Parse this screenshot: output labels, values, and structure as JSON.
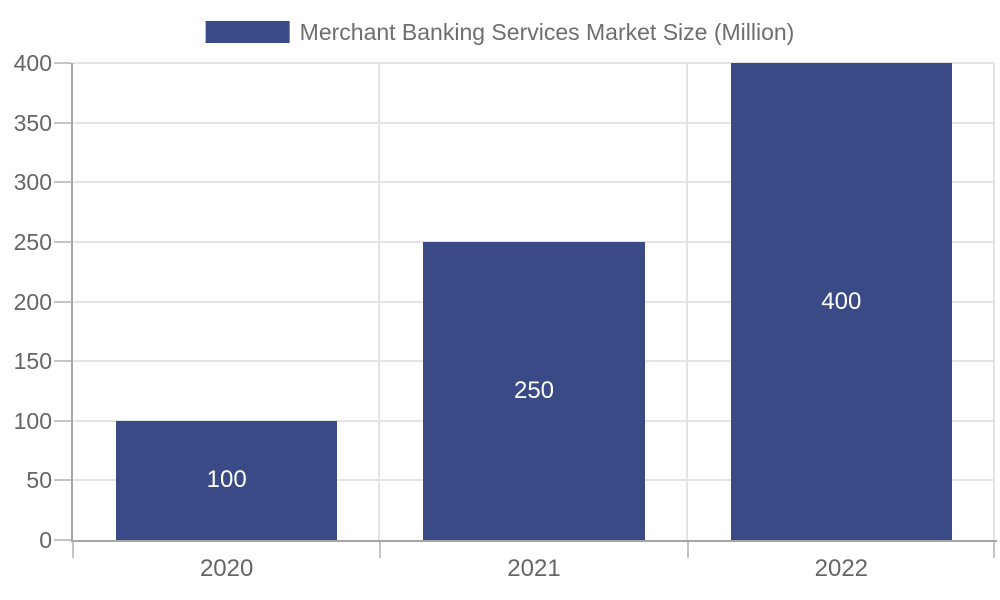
{
  "legend": {
    "label": "Merchant Banking Services Market Size (Million)"
  },
  "chart_data": {
    "type": "bar",
    "title": "Merchant Banking Services Market Size (Million)",
    "categories": [
      "2020",
      "2021",
      "2022"
    ],
    "values": [
      100,
      250,
      400
    ],
    "value_labels": [
      "100",
      "250",
      "400"
    ],
    "xlabel": "",
    "ylabel": "",
    "ylim": [
      0,
      400
    ],
    "ytick_step": 50,
    "ytick_labels": [
      "0",
      "50",
      "100",
      "150",
      "200",
      "250",
      "300",
      "350",
      "400"
    ],
    "grid": true,
    "legend_position": "top",
    "colors": {
      "bar": "#3A4A87",
      "value_label": "#FFFFFF",
      "axis_text": "#666666",
      "legend_text": "#6E6E6E",
      "gridline": "#E4E4E4",
      "axis_line": "#A6A6A6",
      "tick": "#C4C4C4",
      "background": "#FFFFFF"
    }
  }
}
